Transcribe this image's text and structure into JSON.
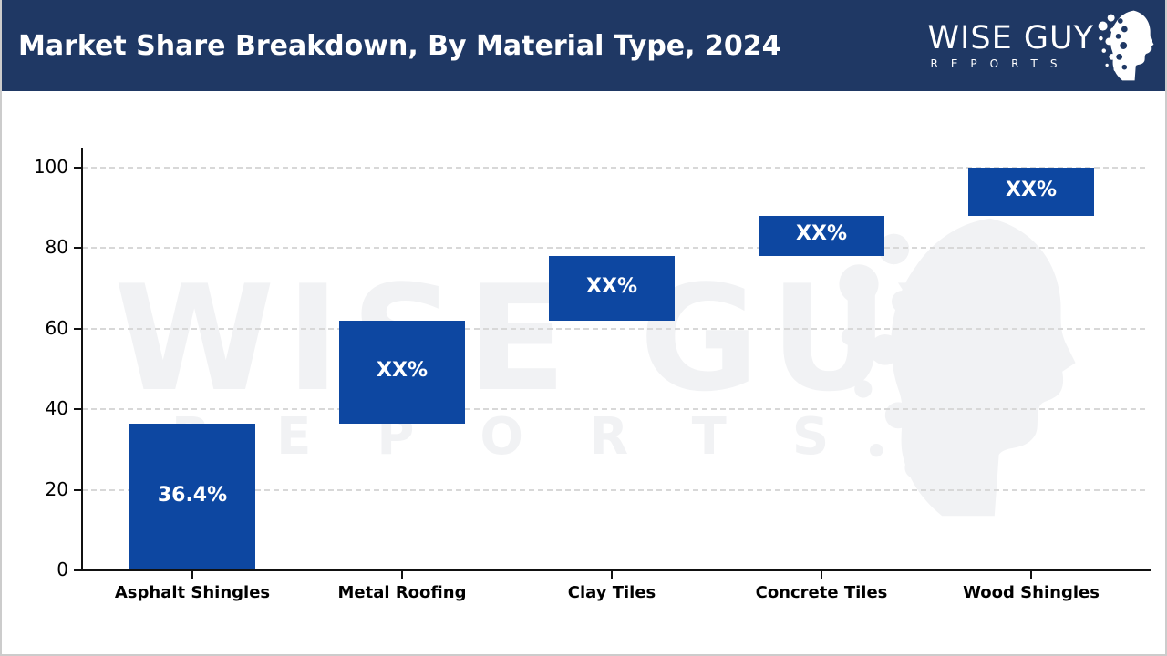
{
  "header": {
    "title": "Market Share Breakdown, By Material Type, 2024",
    "logo_line1": "WISE GUY",
    "logo_line2": "REPORTS"
  },
  "watermark": {
    "line1": "WISE GUY",
    "line2": "REPORTS"
  },
  "chart_data": {
    "type": "bar",
    "subtype": "waterfall-floating-bars",
    "title": "Market Share Breakdown, By Material Type, 2024",
    "categories": [
      "Asphalt Shingles",
      "Metal Roofing",
      "Clay Tiles",
      "Concrete Tiles",
      "Wood Shingles"
    ],
    "bars": [
      {
        "category": "Asphalt Shingles",
        "base": 0,
        "top": 36.4,
        "label": "36.4%"
      },
      {
        "category": "Metal Roofing",
        "base": 36.4,
        "top": 62,
        "label": "XX%"
      },
      {
        "category": "Clay Tiles",
        "base": 62,
        "top": 78,
        "label": "XX%"
      },
      {
        "category": "Concrete Tiles",
        "base": 78,
        "top": 88,
        "label": "XX%"
      },
      {
        "category": "Wood Shingles",
        "base": 88,
        "top": 100,
        "label": "XX%"
      }
    ],
    "xlabel": "",
    "ylabel": "",
    "ylim": [
      0,
      105
    ],
    "yticks": [
      0,
      20,
      40,
      60,
      80,
      100
    ],
    "grid": true,
    "legend": "none",
    "bar_color": "#0d47a1",
    "label_color": "#ffffff"
  },
  "colors": {
    "header_bg": "#1f3864",
    "bar": "#0d47a1",
    "gridline": "#d8d8d8",
    "axis": "#111111",
    "watermark": "#f1f2f4",
    "frame": "#cccccc"
  }
}
